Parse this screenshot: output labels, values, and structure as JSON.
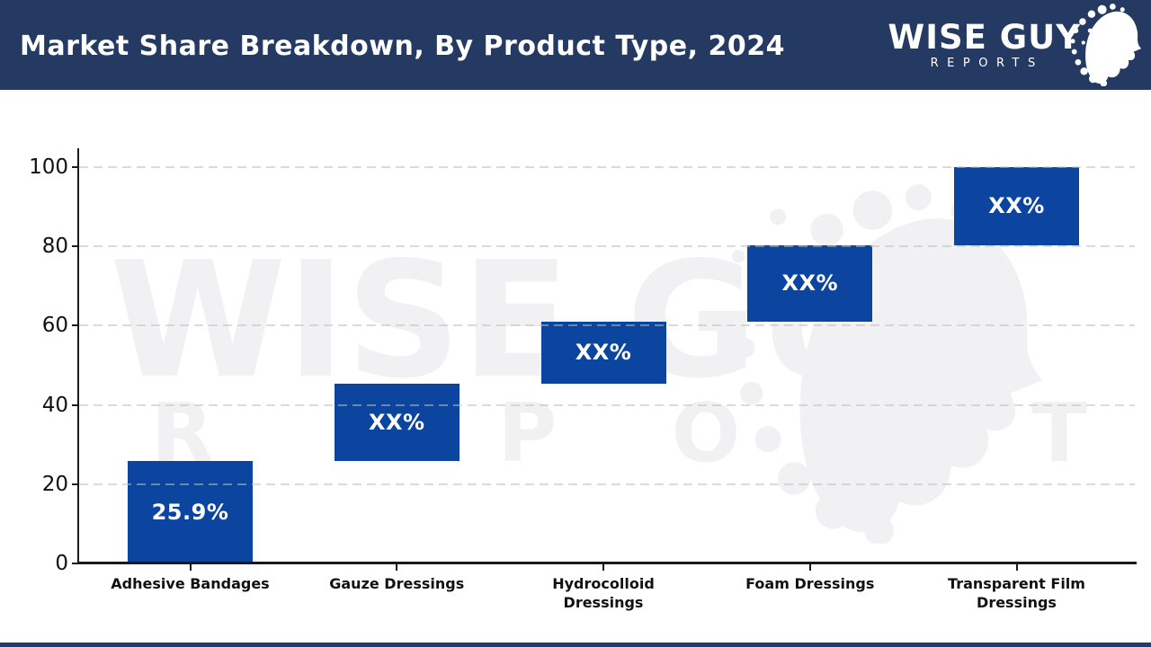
{
  "header": {
    "title": "Market Share Breakdown, By Product Type, 2024",
    "logo": {
      "brand": "WISE GUY",
      "sub": "REPORTS"
    }
  },
  "watermark": {
    "brand": "WISE GUY",
    "sub": "R E P O R T S"
  },
  "colors": {
    "header_navy": "#243a63",
    "bar_blue": "#0b45a0",
    "grid_gray": "#bebebe",
    "axis_black": "#1a1a1a",
    "watermark_gray": "#f1f1f3",
    "bar_label_white": "#ffffff"
  },
  "chart_data": {
    "type": "bar",
    "subtype": "floating-waterfall",
    "title": "Market Share Breakdown, By Product Type, 2024",
    "categories": [
      "Adhesive Bandages",
      "Gauze Dressings",
      "Hydrocolloid\nDressings",
      "Foam Dressings",
      "Transparent Film\nDressings"
    ],
    "segments": [
      {
        "category": "Adhesive Bandages",
        "start": 0,
        "end": 25.9,
        "label": "25.9%"
      },
      {
        "category": "Gauze Dressings",
        "start": 25.9,
        "end": 45.4,
        "label": "XX%"
      },
      {
        "category": "Hydrocolloid Dressings",
        "start": 45.4,
        "end": 61.0,
        "label": "XX%"
      },
      {
        "category": "Foam Dressings",
        "start": 61.0,
        "end": 80.3,
        "label": "XX%"
      },
      {
        "category": "Transparent Film Dressings",
        "start": 80.3,
        "end": 100,
        "label": "XX%"
      }
    ],
    "ylim": [
      0,
      100
    ],
    "yticks": [
      0,
      20,
      40,
      60,
      80,
      100
    ],
    "xlabel": "",
    "ylabel": "",
    "grid": "horizontal-dashed",
    "legend": "none"
  }
}
